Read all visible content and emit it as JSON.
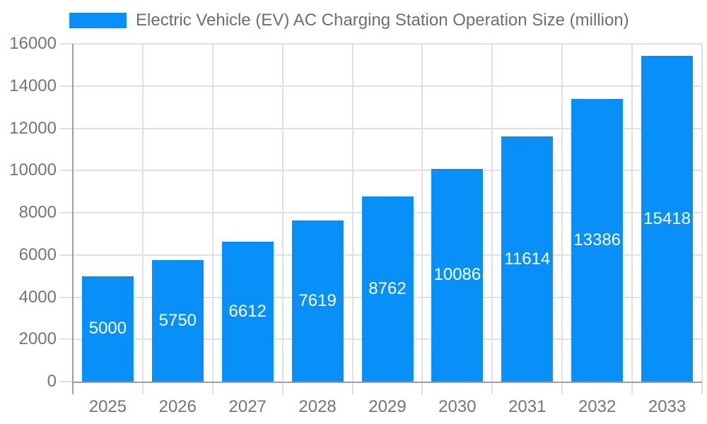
{
  "legend": {
    "label": "Electric Vehicle (EV) AC Charging Station Operation Size (million)"
  },
  "chart_data": {
    "type": "bar",
    "title": "",
    "categories": [
      "2025",
      "2026",
      "2027",
      "2028",
      "2029",
      "2030",
      "2031",
      "2032",
      "2033"
    ],
    "series": [
      {
        "name": "Electric Vehicle (EV) AC Charging Station Operation Size (million)",
        "values": [
          5000,
          5750,
          6612,
          7619,
          8762,
          10086,
          11614,
          13386,
          15418
        ]
      }
    ],
    "xlabel": "",
    "ylabel": "",
    "ylim": [
      0,
      16000
    ],
    "yticks": [
      0,
      2000,
      4000,
      6000,
      8000,
      10000,
      12000,
      14000,
      16000
    ],
    "grid": true,
    "legend_position": "top-left",
    "bar_labels_inside": true
  },
  "colors": {
    "bar": "#0890f8",
    "bar_label": "#ffffff",
    "grid": "#e0e0e0",
    "axis": "#9e9e9e",
    "tick_label": "#757575",
    "legend_text": "#6e6e6e",
    "background": "#ffffff"
  }
}
